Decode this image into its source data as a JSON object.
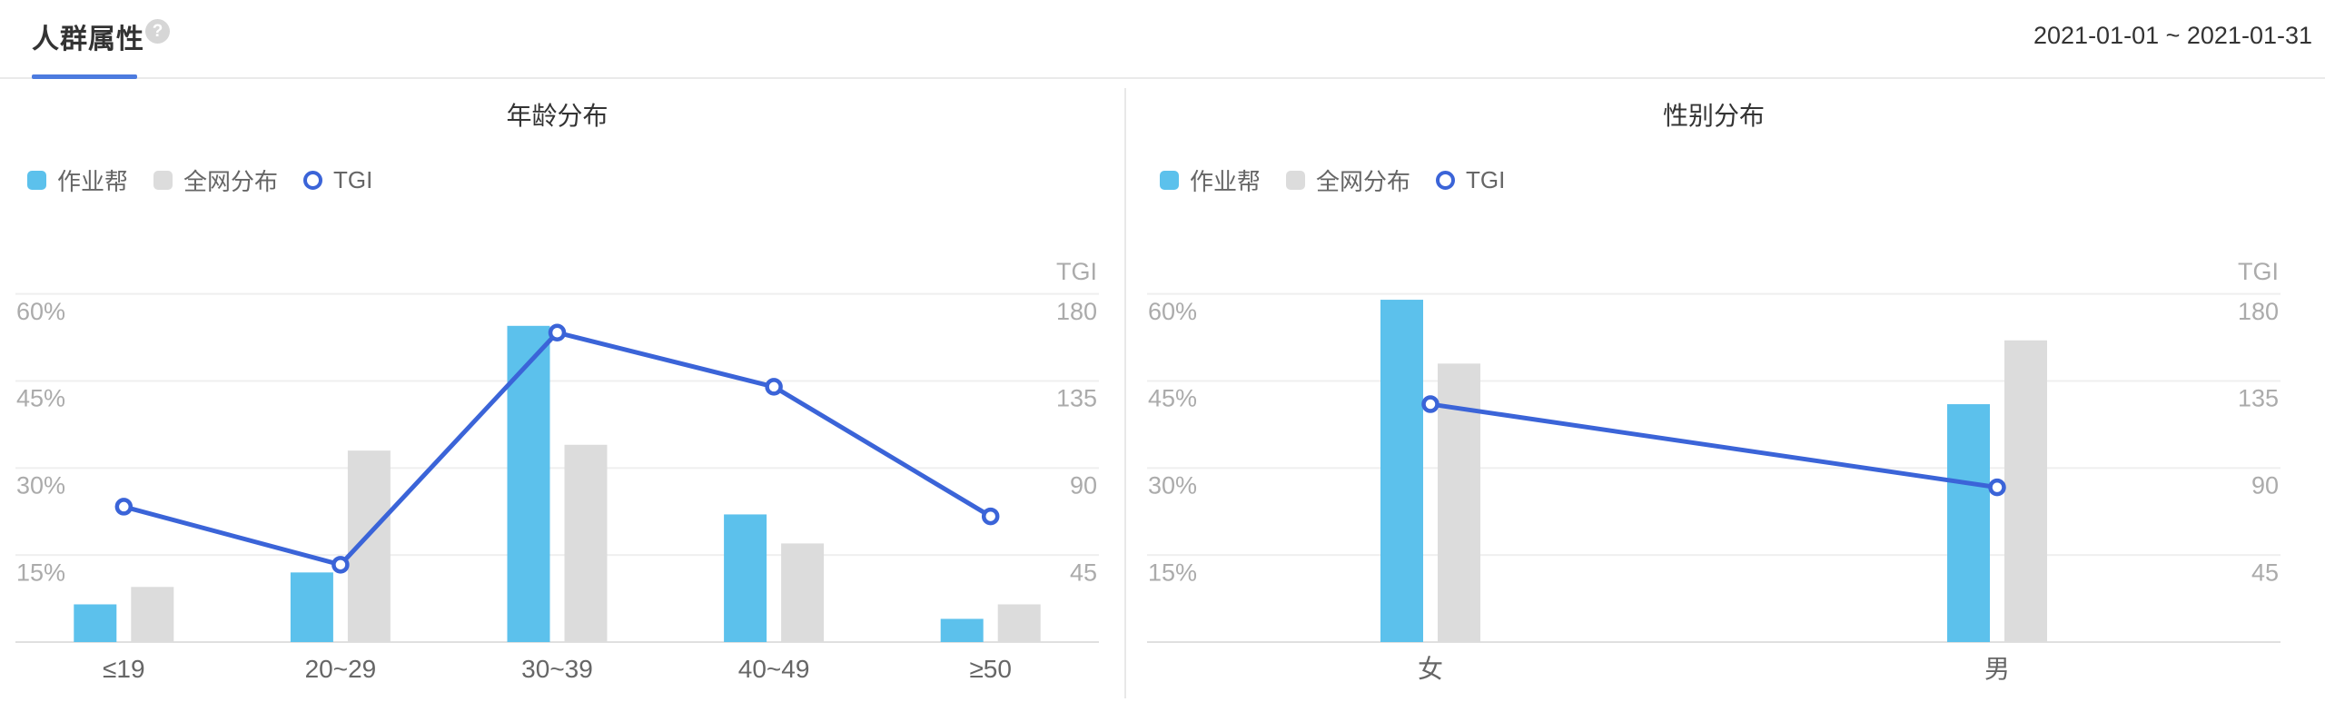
{
  "page": {
    "header": {
      "title": "人群属性",
      "help_glyph": "?",
      "date_range": "2021-01-01 ~ 2021-01-31"
    }
  },
  "colors": {
    "bar_primary": "#5CC1EC",
    "bar_secondary": "#DCDCDC",
    "tgi_line": "#3B64D8",
    "grid_line": "#EFEFEF",
    "axis_line": "#E0E0E0",
    "tick_text": "#ABABAB",
    "label_text": "#666666",
    "accent_tab": "#4C7BDF"
  },
  "chart_data": [
    {
      "type": "bar",
      "title": "年龄分布",
      "categories": [
        "≤19",
        "20~29",
        "30~39",
        "40~49",
        "≥50"
      ],
      "series": [
        {
          "name": "作业帮",
          "type": "bar",
          "axis": "percent",
          "values": [
            6.5,
            12,
            54.5,
            22,
            4
          ]
        },
        {
          "name": "全网分布",
          "type": "bar",
          "axis": "percent",
          "values": [
            9.5,
            33,
            34,
            17,
            6.5
          ]
        },
        {
          "name": "TGI",
          "type": "line",
          "axis": "tgi",
          "values": [
            70,
            40,
            160,
            132,
            65
          ]
        }
      ],
      "percent_axis": {
        "ticks": [
          15,
          30,
          45,
          60
        ],
        "suffix": "%",
        "range": [
          0,
          60
        ]
      },
      "tgi_axis": {
        "ticks": [
          45,
          90,
          135,
          180
        ],
        "title": "TGI",
        "range": [
          0,
          180
        ]
      },
      "legend_position": "top-left",
      "grid": true
    },
    {
      "type": "bar",
      "title": "性别分布",
      "categories": [
        "女",
        "男"
      ],
      "series": [
        {
          "name": "作业帮",
          "type": "bar",
          "axis": "percent",
          "values": [
            59,
            41
          ]
        },
        {
          "name": "全网分布",
          "type": "bar",
          "axis": "percent",
          "values": [
            48,
            52
          ]
        },
        {
          "name": "TGI",
          "type": "line",
          "axis": "tgi",
          "values": [
            123,
            80
          ]
        }
      ],
      "percent_axis": {
        "ticks": [
          15,
          30,
          45,
          60
        ],
        "suffix": "%",
        "range": [
          0,
          60
        ]
      },
      "tgi_axis": {
        "ticks": [
          45,
          90,
          135,
          180
        ],
        "title": "TGI",
        "range": [
          0,
          180
        ]
      },
      "legend_position": "top-left",
      "grid": true
    }
  ]
}
